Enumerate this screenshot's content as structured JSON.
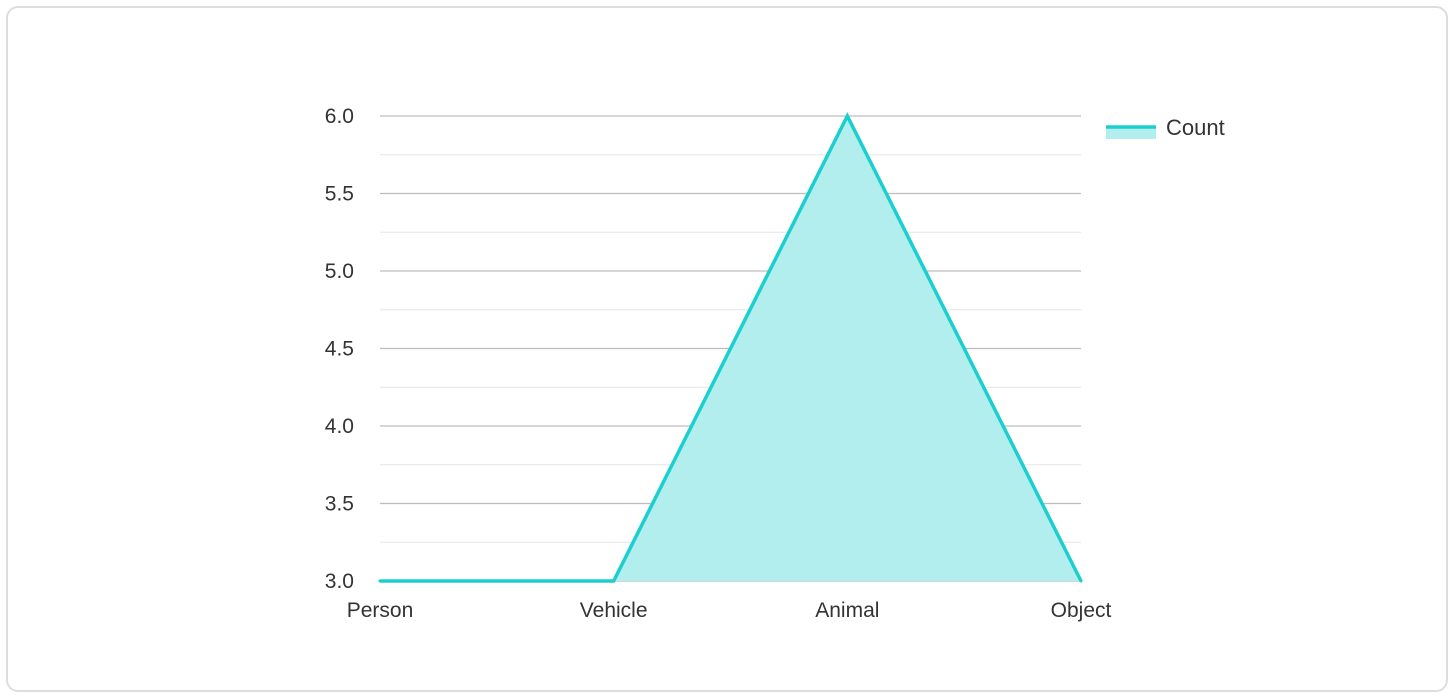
{
  "chart_data": {
    "type": "area",
    "categories": [
      "Person",
      "Vehicle",
      "Animal",
      "Object"
    ],
    "series": [
      {
        "name": "Count",
        "values": [
          3,
          3,
          6,
          3
        ]
      }
    ],
    "ylim": [
      3.0,
      6.0
    ],
    "y_ticks": [
      "3.0",
      "3.5",
      "4.0",
      "4.5",
      "5.0",
      "5.5",
      "6.0"
    ],
    "grid": true,
    "legend": "top-right",
    "colors": {
      "line": "#1ccfcf",
      "fill": "#b2eeee",
      "grid_major": "#bdbdbd",
      "grid_minor": "#e6e6e6"
    }
  }
}
